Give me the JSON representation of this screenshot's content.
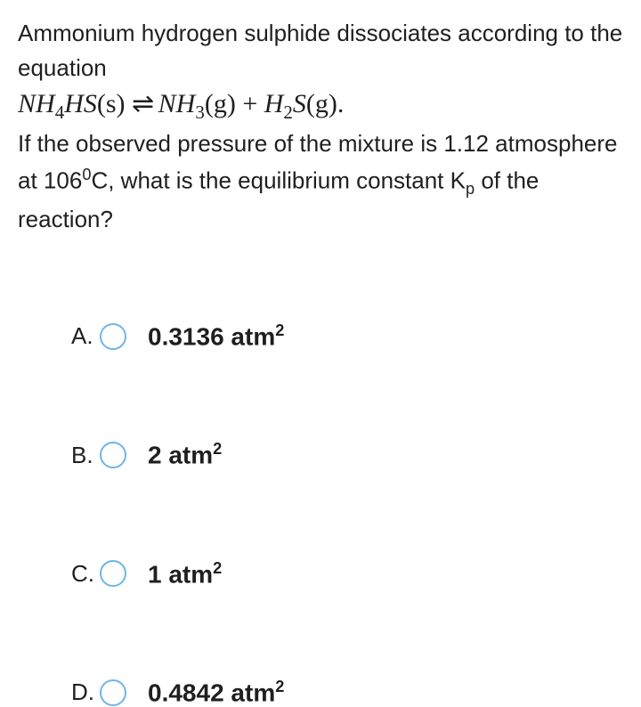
{
  "question": {
    "line1": "Ammonium hydrogen sulphide dissociates according to the equation",
    "pressure_value": "1.12",
    "temp_value": "106",
    "temp_unit_sup": "0",
    "temp_unit": "C",
    "kp_label": "K",
    "kp_sub": "p"
  },
  "equation": {
    "reactant": "NH",
    "r_sub1": "4",
    "r_mid": "HS",
    "r_state": "(s)",
    "arrow": "⇌",
    "p1": "NH",
    "p1_sub": "3",
    "p1_state": "(g)",
    "plus": "+",
    "p2": "H",
    "p2_sub": "2",
    "p2_mid": "S",
    "p2_state": "(g)",
    "end": "."
  },
  "options": [
    {
      "letter": "A.",
      "value": "0.3136 atm",
      "sup": "2"
    },
    {
      "letter": "B.",
      "value": "2 atm",
      "sup": "2"
    },
    {
      "letter": "C.",
      "value": "1 atm",
      "sup": "2"
    },
    {
      "letter": "D.",
      "value": "0.4842 atm",
      "sup": "2"
    }
  ],
  "colors": {
    "text": "#1f1f1f",
    "radio_ring": "#6fb5e6",
    "background": "#ffffff"
  }
}
